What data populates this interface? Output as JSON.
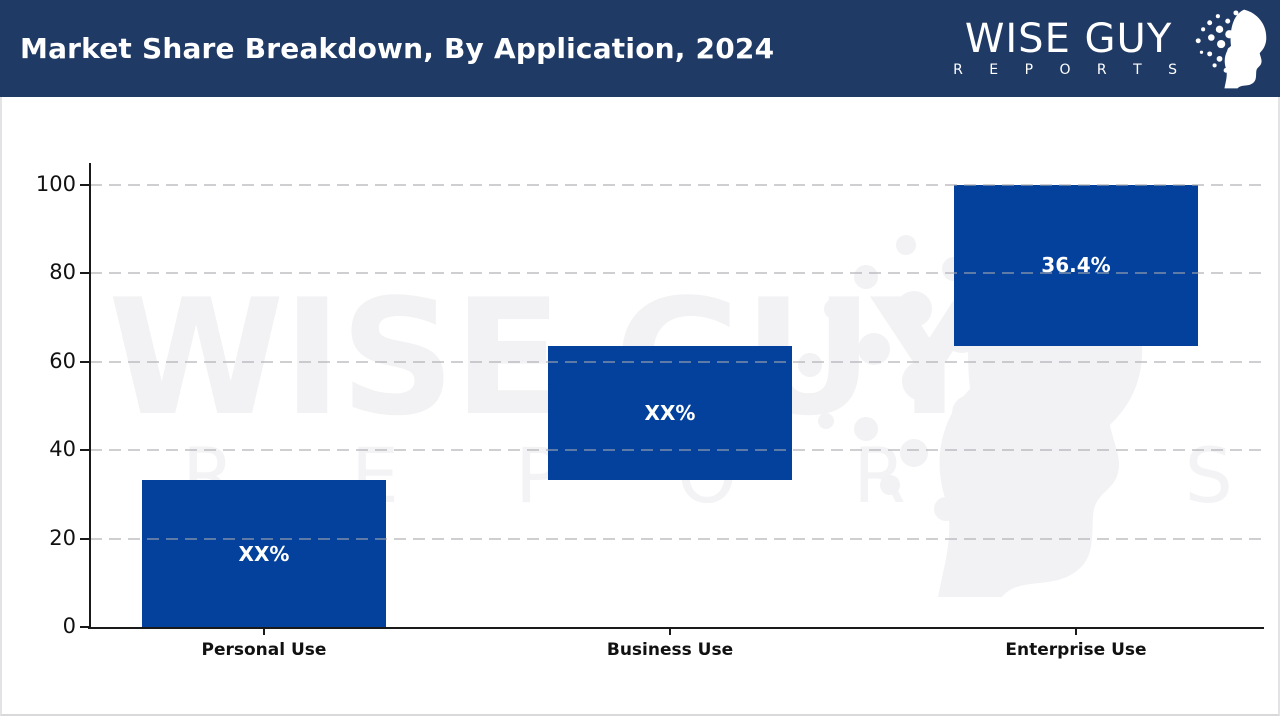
{
  "header": {
    "title": "Market Share Breakdown, By Application, 2024",
    "bg_color": "#203a66",
    "logo": {
      "brand": "WISE GUY",
      "sub": "R E P O R T S"
    }
  },
  "watermark": {
    "brand": "WISE GUY",
    "sub": "R E P O R T S"
  },
  "colors": {
    "header_bg": "#203a66",
    "bar": "#03419c",
    "bar_label": "#ffffff",
    "grid": "#d9d9d9",
    "axis": "#1a1a1a",
    "watermark": "#f2f2f4"
  },
  "chart_data": {
    "type": "bar",
    "variant": "floating-segment-waterfall",
    "title": "Market Share Breakdown, By Application, 2024",
    "categories": [
      "Personal Use",
      "Business Use",
      "Enterprise Use"
    ],
    "segments": [
      {
        "category": "Personal Use",
        "start": 0,
        "end": 33.2,
        "label": "XX%"
      },
      {
        "category": "Business Use",
        "start": 33.2,
        "end": 63.6,
        "label": "XX%"
      },
      {
        "category": "Enterprise Use",
        "start": 63.6,
        "end": 100,
        "label": "36.4%"
      }
    ],
    "bar_labels": [
      "XX%",
      "XX%",
      "36.4%"
    ],
    "xlabel": "",
    "ylabel": "",
    "ylim": [
      0,
      100
    ],
    "yticks": [
      0,
      20,
      40,
      60,
      80,
      100
    ],
    "grid": "horizontal-dashed",
    "legend": "none",
    "bar_color": "#03419c"
  }
}
